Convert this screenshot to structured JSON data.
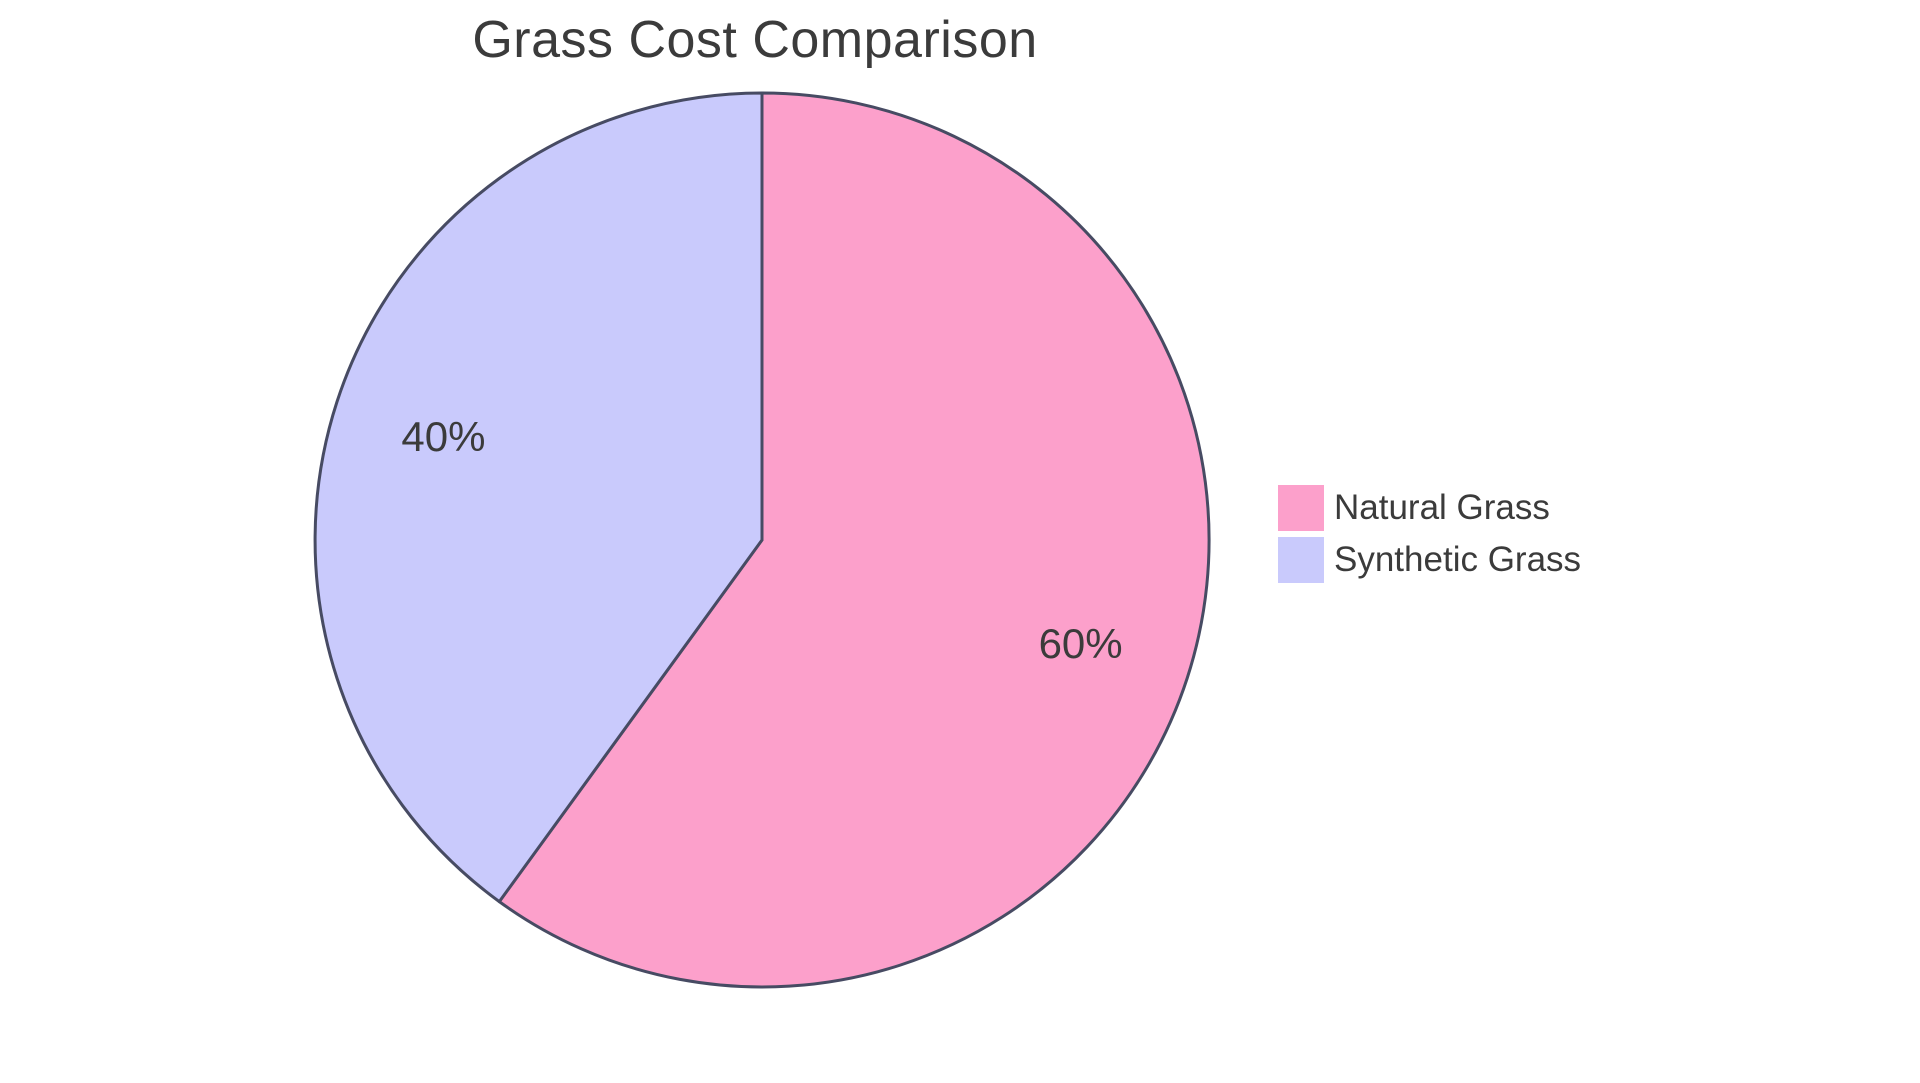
{
  "chart_data": {
    "type": "pie",
    "title": "Grass Cost Comparison",
    "legend_position": "right",
    "start_angle": "top",
    "direction": "clockwise",
    "background": "#FFFFFF",
    "stroke_color": "#474B63",
    "stroke_width": 3,
    "title_color": "#3B3B3B",
    "label_color": "#3B3B3B",
    "slices": [
      {
        "label": "Natural Grass",
        "value": 60,
        "percent_label": "60%",
        "color": "#FCA0CB"
      },
      {
        "label": "Synthetic Grass",
        "value": 40,
        "percent_label": "40%",
        "color": "#C9CAFC"
      }
    ]
  }
}
